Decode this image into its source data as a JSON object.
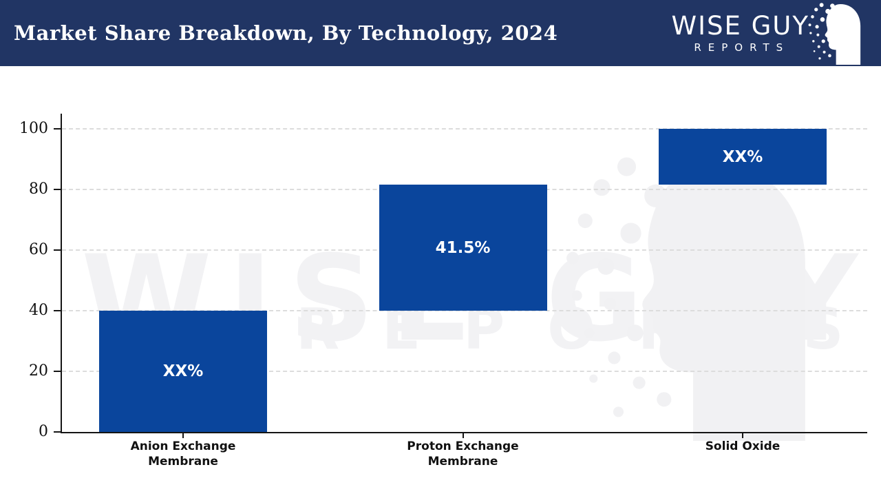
{
  "header": {
    "title": "Market Share Breakdown, By Technology, 2024",
    "logo_line1": "WISE GUY",
    "logo_line2": "REPORTS"
  },
  "watermark": {
    "line1": "WISE GUY",
    "line2": "REPORTS"
  },
  "colors": {
    "header_bg": "#213564",
    "bar": "#0a459c",
    "grid": "#dcdcdc",
    "axis": "#151515",
    "bar_label_text": "#ffffff"
  },
  "chart_data": {
    "type": "bar",
    "subtype": "waterfall-floating-bars",
    "title": "Market Share Breakdown, By Technology, 2024",
    "categories": [
      [
        "Anion Exchange",
        "Membrane"
      ],
      [
        "Proton Exchange",
        "Membrane"
      ],
      [
        "Solid Oxide"
      ]
    ],
    "series": [
      {
        "name": "Market share (%)",
        "base": [
          0,
          40,
          81.5
        ],
        "values": [
          40,
          41.5,
          18.5
        ]
      }
    ],
    "bar_labels": [
      "XX%",
      "41.5%",
      "XX%"
    ],
    "ylim": [
      0,
      100
    ],
    "yticks": [
      0,
      20,
      40,
      60,
      80,
      100
    ],
    "grid": "horizontal-dashed",
    "legend": "none"
  }
}
